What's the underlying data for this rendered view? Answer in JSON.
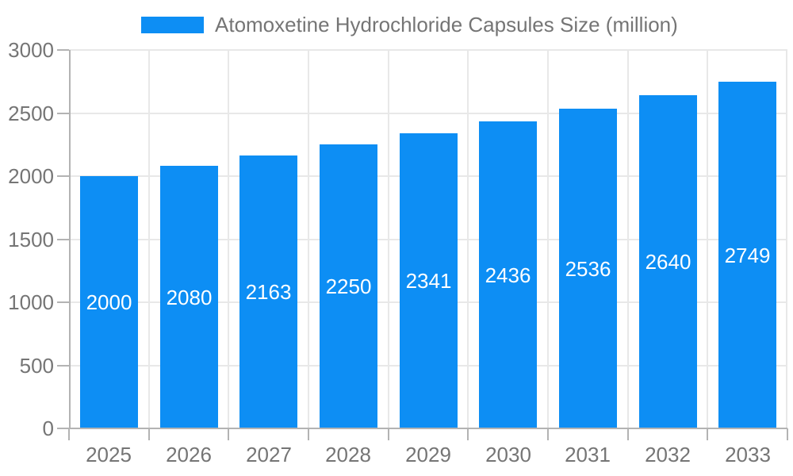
{
  "legend": {
    "label": "Atomoxetine Hydrochloride Capsules Size (million)"
  },
  "colors": {
    "bar": "#0d8ef4",
    "axis_text": "#757575",
    "gridline": "#e8e8e8",
    "axis_line": "#b3b3b3",
    "value_label": "#ffffff",
    "background": "#ffffff"
  },
  "chart_data": {
    "type": "bar",
    "title": "",
    "categories": [
      "2025",
      "2026",
      "2027",
      "2028",
      "2029",
      "2030",
      "2031",
      "2032",
      "2033"
    ],
    "values": [
      2000,
      2080,
      2163,
      2250,
      2341,
      2436,
      2536,
      2640,
      2749
    ],
    "series": [
      {
        "name": "Atomoxetine Hydrochloride Capsules Size (million)",
        "values": [
          2000,
          2080,
          2163,
          2250,
          2341,
          2436,
          2536,
          2640,
          2749
        ]
      }
    ],
    "xlabel": "",
    "ylabel": "",
    "ylim": [
      0,
      3000
    ],
    "yticks": [
      0,
      500,
      1000,
      1500,
      2000,
      2500,
      3000
    ],
    "grid": true,
    "legend_position": "top",
    "value_labels": "inside-middle",
    "bar_color": "#0d8ef4"
  }
}
